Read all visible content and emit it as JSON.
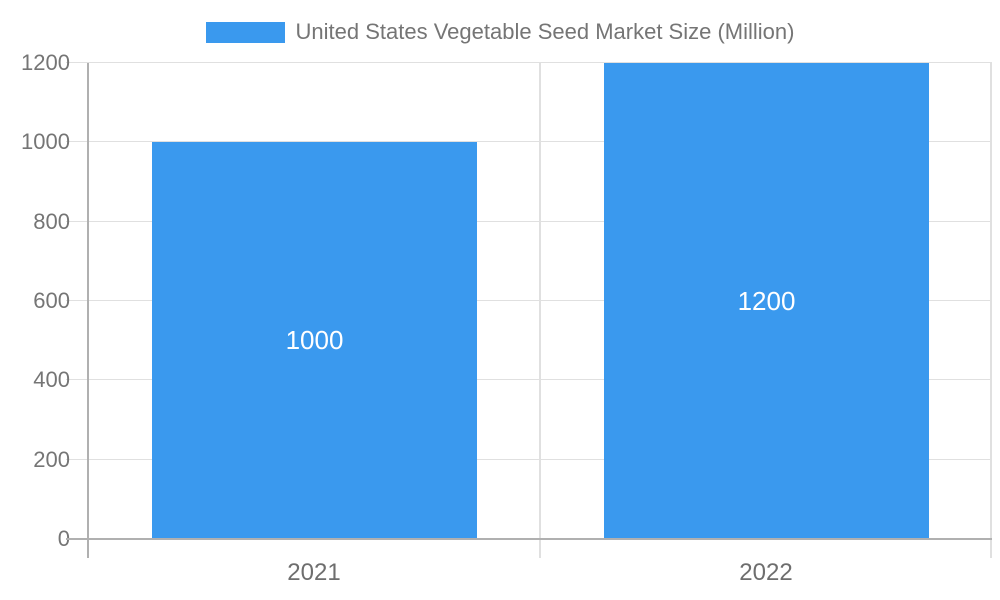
{
  "chart_data": {
    "type": "bar",
    "title": "United States Vegetable Seed Market Size (Million)",
    "categories": [
      "2021",
      "2022"
    ],
    "values": [
      1000,
      1200
    ],
    "xlabel": "",
    "ylabel": "",
    "ylim": [
      0,
      1200
    ],
    "yticks": [
      0,
      200,
      400,
      600,
      800,
      1000,
      1200
    ],
    "grid": true,
    "legend_position": "top",
    "value_labels_inside_bars": true,
    "colors": {
      "bar": "#3A99EE",
      "value_label": "#FFFFFF",
      "axis_line": "#B0B0B0",
      "gridline": "#E0E0E0",
      "y_tick_label": "#757575",
      "x_tick_label": "#6E6E6E",
      "legend_text": "#757575",
      "background": "#FFFFFF"
    }
  }
}
